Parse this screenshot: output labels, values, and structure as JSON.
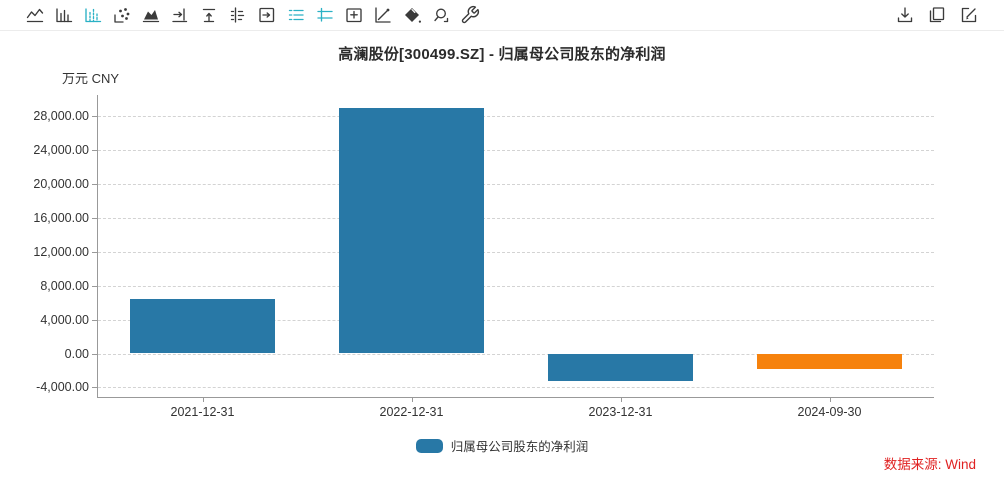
{
  "toolbar": {
    "icon_color": "#3b3b3b",
    "active_color": "#2ab1c5",
    "left_icons": [
      {
        "name": "line-chart-icon",
        "active": false
      },
      {
        "name": "column-chart-icon",
        "active": false
      },
      {
        "name": "dotted-column-chart-icon",
        "active": true
      },
      {
        "name": "scatter-chart-icon",
        "active": false
      },
      {
        "name": "area-chart-icon",
        "active": false
      },
      {
        "name": "axis-shift-right-icon",
        "active": false
      },
      {
        "name": "axis-shift-up-icon",
        "active": false
      },
      {
        "name": "axis-settings-icon",
        "active": false
      },
      {
        "name": "export-box-icon",
        "active": false
      },
      {
        "name": "legend-list-icon",
        "active": true
      },
      {
        "name": "grid-lines-icon",
        "active": true
      },
      {
        "name": "zoom-region-icon",
        "active": false
      },
      {
        "name": "trend-line-icon",
        "active": false
      },
      {
        "name": "fill-style-icon",
        "active": false
      },
      {
        "name": "magnifier-icon",
        "active": false
      },
      {
        "name": "wrench-icon",
        "active": false
      }
    ],
    "right_icons": [
      {
        "name": "download-icon"
      },
      {
        "name": "copy-icon"
      },
      {
        "name": "edit-icon"
      }
    ]
  },
  "header": {
    "title": "高澜股份[300499.SZ] - 归属母公司股东的净利润"
  },
  "chart_data": {
    "type": "bar",
    "title": "高澜股份[300499.SZ] - 归属母公司股东的净利润",
    "unit_label": "万元 CNY",
    "categories": [
      "2021-12-31",
      "2022-12-31",
      "2023-12-31",
      "2024-09-30"
    ],
    "series": [
      {
        "name": "归属母公司股东的净利润",
        "values": [
          6400,
          28900,
          -3200,
          -1850
        ]
      }
    ],
    "bar_colors": [
      "#2878a6",
      "#2878a6",
      "#2878a6",
      "#f6820d"
    ],
    "yticks": [
      -4000,
      0,
      4000,
      8000,
      12000,
      16000,
      20000,
      24000,
      28000
    ],
    "ylim": [
      -5100,
      30500
    ],
    "grid": "horizontal-dashed",
    "legend_position": "bottom"
  },
  "legend": {
    "label": "归属母公司股东的净利润",
    "swatch_color": "#2878a6"
  },
  "source_note": {
    "text": "数据来源: Wind",
    "color": "#e02222"
  }
}
